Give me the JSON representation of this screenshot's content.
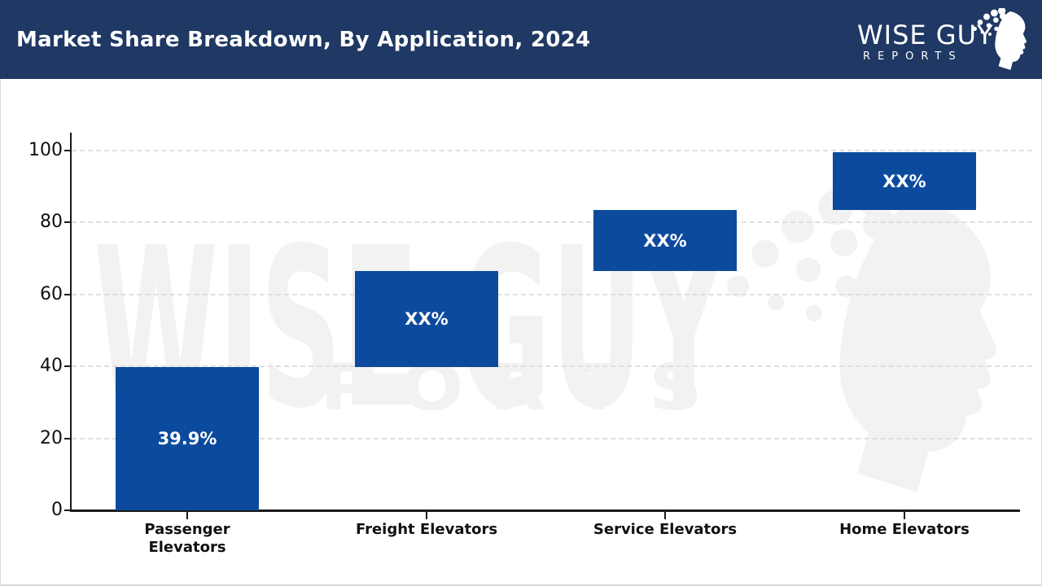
{
  "header": {
    "title": "Market Share Breakdown, By Application, 2024",
    "logo_line1": "WISE GUY",
    "logo_line2": "REPORTS"
  },
  "watermark": {
    "line1": "WISE GUY",
    "line2": "P O R T S"
  },
  "chart_data": {
    "type": "bar",
    "subtype": "waterfall",
    "title": "Market Share Breakdown, By Application, 2024",
    "categories": [
      "Passenger Elevators",
      "Freight Elevators",
      "Service Elevators",
      "Home Elevators"
    ],
    "tick_labels": [
      "Passenger\nElevators",
      "Freight Elevators",
      "Service Elevators",
      "Home Elevators"
    ],
    "segments": [
      {
        "category": "Passenger Elevators",
        "start": 0,
        "end": 39.9,
        "label": "39.9%"
      },
      {
        "category": "Freight Elevators",
        "start": 39.9,
        "end": 66.6,
        "label": "XX%"
      },
      {
        "category": "Service Elevators",
        "start": 66.6,
        "end": 83.4,
        "label": "XX%"
      },
      {
        "category": "Home Elevators",
        "start": 83.4,
        "end": 99.5,
        "label": "XX%"
      }
    ],
    "ylim": [
      0,
      105
    ],
    "yticks": [
      0,
      20,
      40,
      60,
      80,
      100
    ],
    "grid": "horizontal dashed",
    "legend": "none",
    "xlabel": "",
    "ylabel": ""
  },
  "colors": {
    "header_bg": "#1f3864",
    "bar": "#0c4a9e",
    "grid": "#dedede",
    "axis": "#1a1a1a",
    "bar_label_text": "#ffffff",
    "watermark": "#f2f2f2"
  }
}
